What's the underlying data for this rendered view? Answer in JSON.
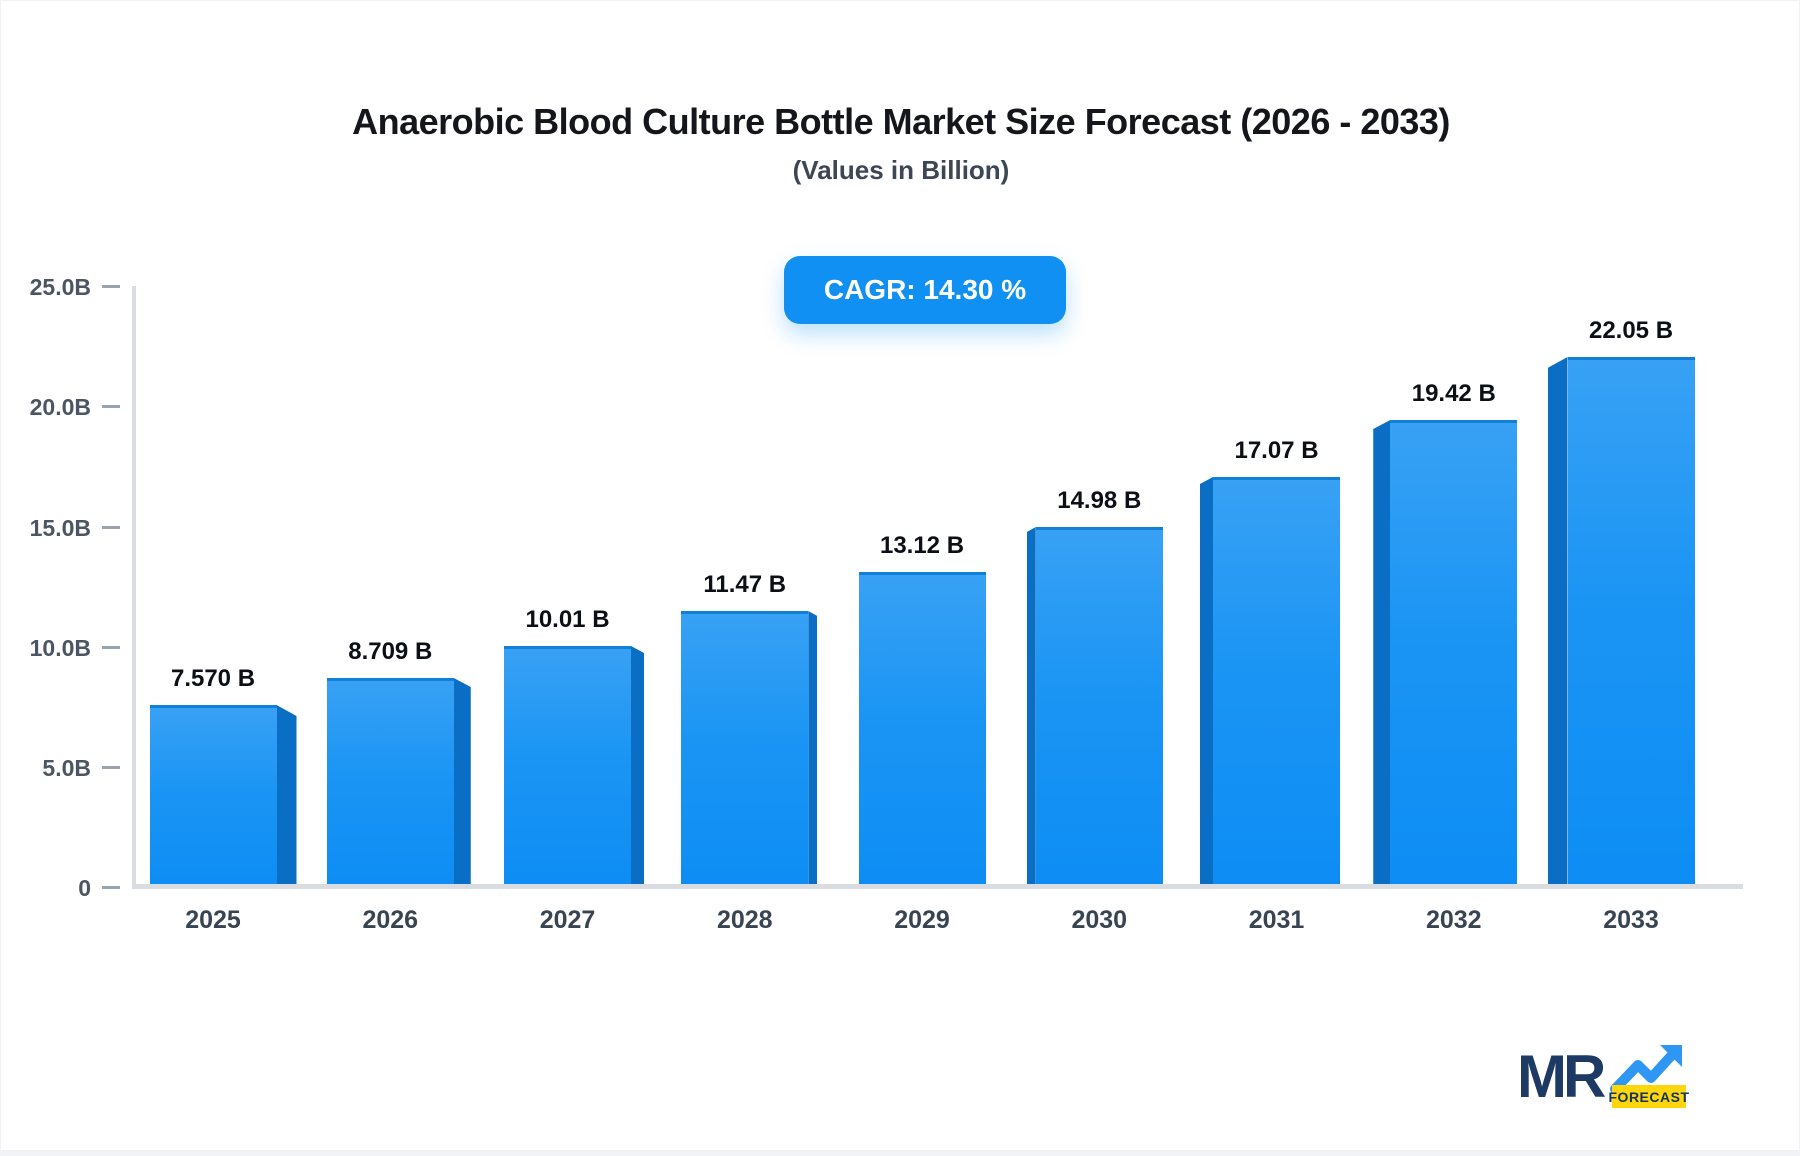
{
  "title": "Anaerobic Blood Culture Bottle Market Size Forecast (2026 - 2033)",
  "subtitle": "(Values in Billion)",
  "badge": {
    "label": "CAGR: 14.30 %"
  },
  "chart_data": {
    "type": "bar",
    "title": "Anaerobic Blood Culture Bottle Market Size Forecast (2026 - 2033)",
    "subtitle": "(Values in Billion)",
    "xlabel": "",
    "ylabel": "",
    "categories": [
      "2025",
      "2026",
      "2027",
      "2028",
      "2029",
      "2030",
      "2031",
      "2032",
      "2033"
    ],
    "values": [
      7.57,
      8.709,
      10.01,
      11.47,
      13.12,
      14.98,
      17.07,
      19.42,
      22.05
    ],
    "value_labels": [
      "7.570 B",
      "8.709 B",
      "10.01 B",
      "11.47 B",
      "13.12 B",
      "14.98 B",
      "17.07 B",
      "19.42 B",
      "22.05 B"
    ],
    "unit": "Billion USD",
    "cagr": "14.30 %",
    "ylim": [
      0,
      25
    ],
    "y_ticks": [
      {
        "label": "0",
        "value": 0
      },
      {
        "label": "5.0B",
        "value": 5
      },
      {
        "label": "10.0B",
        "value": 10
      },
      {
        "label": "15.0B",
        "value": 15
      },
      {
        "label": "20.0B",
        "value": 20
      },
      {
        "label": "25.0B",
        "value": 25
      }
    ],
    "grid": false,
    "legend": false,
    "style": "3d-perspective-bars"
  },
  "colors": {
    "bar_face_top": "#38a1f4",
    "bar_face_bottom": "#0d8df4",
    "bar_side": "#0a6fc4",
    "bar_top_edge": "#1180d8",
    "axis_line": "#d9dde2",
    "tick_mark": "#9ba3ae",
    "tick_label": "#4b5563",
    "year_label": "#394453",
    "value_label": "#0c1016",
    "badge_bg": "#1090f2",
    "badge_text": "#ffffff",
    "title_text": "#14161c",
    "subtitle_text": "#3c4654",
    "logo_navy": "#1c3a63",
    "logo_blue": "#2e96f3",
    "logo_yellow": "#ffd60b",
    "background": "#ffffff"
  },
  "logo": {
    "text": "MR",
    "sub": "FORECAST"
  }
}
